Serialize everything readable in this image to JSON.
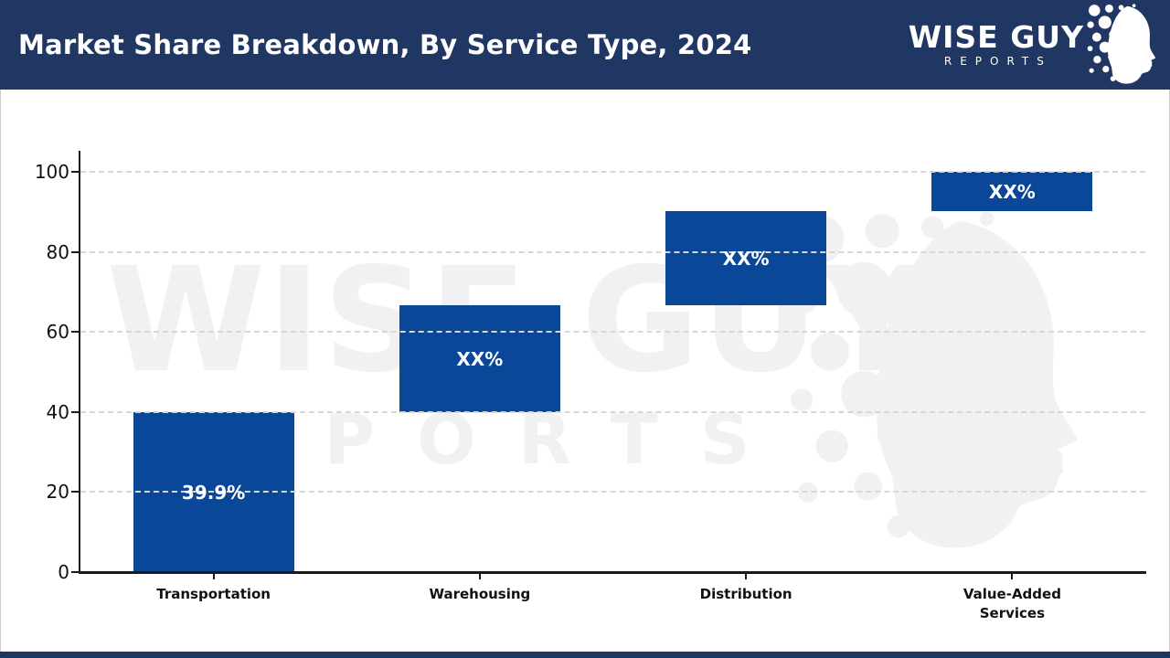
{
  "header": {
    "title": "Market Share Breakdown, By Service Type, 2024",
    "logo": {
      "name": "WISE GUY",
      "sub": "REPORTS"
    }
  },
  "watermark": {
    "name": "WISE GUY",
    "sub": "REPORTS"
  },
  "chart_data": {
    "type": "bar",
    "subtype": "floating-waterfall",
    "title": "Market Share Breakdown, By Service Type, 2024",
    "categories": [
      "Transportation",
      "Warehousing",
      "Distribution",
      "Value-Added\nServices"
    ],
    "segments": [
      {
        "category": "Transportation",
        "from": 0,
        "to": 39.9,
        "label": "39.9%"
      },
      {
        "category": "Warehousing",
        "from": 39.9,
        "to": 66.7,
        "label": "XX%"
      },
      {
        "category": "Distribution",
        "from": 66.7,
        "to": 90.1,
        "label": "XX%"
      },
      {
        "category": "Value-Added Services",
        "from": 90.1,
        "to": 100,
        "label": "XX%"
      }
    ],
    "yticks": [
      0,
      20,
      40,
      60,
      80,
      100
    ],
    "ylim": [
      0,
      105
    ],
    "xlabel": "",
    "ylabel": "",
    "grid": {
      "axis": "y",
      "style": "dashed"
    },
    "legend": null,
    "bar_color": "#0a4799",
    "bar_label_color": "#ffffff"
  },
  "colors": {
    "header_bg": "#203764",
    "footer_bg": "#203764",
    "bar": "#0a4799",
    "grid": "#d7d7d7",
    "axis": "#1a1a1a",
    "tick_text": "#111111",
    "watermark": "#f0f1f3"
  }
}
